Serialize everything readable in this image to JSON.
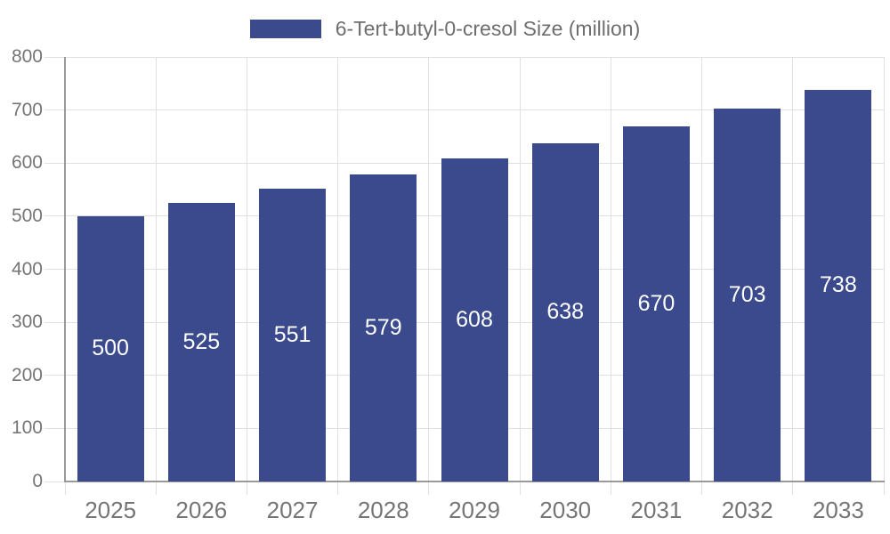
{
  "legend": {
    "label": "6-Tert-butyl-0-cresol Size (million)"
  },
  "chart_data": {
    "type": "bar",
    "title": "",
    "series_name": "6-Tert-butyl-0-cresol Size (million)",
    "categories": [
      "2025",
      "2026",
      "2027",
      "2028",
      "2029",
      "2030",
      "2031",
      "2032",
      "2033"
    ],
    "values": [
      500,
      525,
      551,
      579,
      608,
      638,
      670,
      703,
      738
    ],
    "xlabel": "",
    "ylabel": "",
    "ylim": [
      0,
      800
    ],
    "yticks": [
      0,
      100,
      200,
      300,
      400,
      500,
      600,
      700,
      800
    ],
    "grid": true,
    "legend_position": "top-center",
    "value_label_position": "inside-center"
  },
  "colors": {
    "bar": "#3a4a8c",
    "grid": "#e0e0e0",
    "axis": "#999999",
    "tick_label": "#757575",
    "legend_text": "#6e6e6e",
    "bar_label": "#ffffff",
    "background": "#ffffff"
  }
}
